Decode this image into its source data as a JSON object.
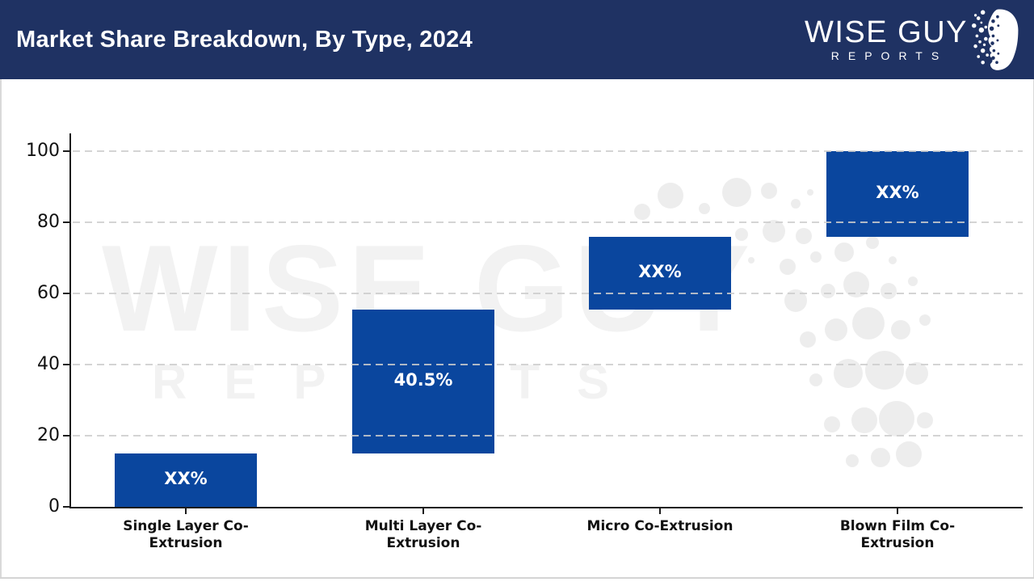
{
  "header": {
    "title": "Market Share Breakdown, By Type, 2024",
    "logo": {
      "wordmark": "WISE GUY",
      "subtext": "REPORTS"
    }
  },
  "watermark": {
    "line1": "WISE GUY",
    "line2": "REPORTS"
  },
  "colors": {
    "header_bg": "#1f3263",
    "bar": "#0a469e",
    "grid": "#d9d9d9",
    "axis": "#1c1c1c",
    "watermark": "#f2f2f2",
    "bar_label_text": "#ffffff"
  },
  "chart_data": {
    "type": "bar",
    "subtype": "waterfall-floating-bars",
    "title": "Market Share Breakdown, By Type, 2024",
    "categories": [
      "Single Layer Co-Extrusion",
      "Multi Layer Co-Extrusion",
      "Micro Co-Extrusion",
      "Blown Film Co-Extrusion"
    ],
    "category_lines": [
      [
        "Single Layer Co-",
        "Extrusion"
      ],
      [
        "Multi Layer Co-",
        "Extrusion"
      ],
      [
        "Micro Co-Extrusion"
      ],
      [
        "Blown Film Co-",
        "Extrusion"
      ]
    ],
    "segments": [
      {
        "category": "Single Layer Co-Extrusion",
        "start": 0,
        "end": 15,
        "height": 15,
        "label": "XX%"
      },
      {
        "category": "Multi Layer Co-Extrusion",
        "start": 15,
        "end": 55.5,
        "height": 40.5,
        "label": "40.5%"
      },
      {
        "category": "Micro Co-Extrusion",
        "start": 55.5,
        "end": 76,
        "height": 20.5,
        "label": "XX%"
      },
      {
        "category": "Blown Film Co-Extrusion",
        "start": 76,
        "end": 100,
        "height": 24,
        "label": "XX%"
      }
    ],
    "ylim": [
      0,
      100
    ],
    "yticks": [
      0,
      20,
      40,
      60,
      80,
      100
    ],
    "xlabel": "",
    "ylabel": "",
    "grid": "horizontal-dashed",
    "legend": "none"
  }
}
